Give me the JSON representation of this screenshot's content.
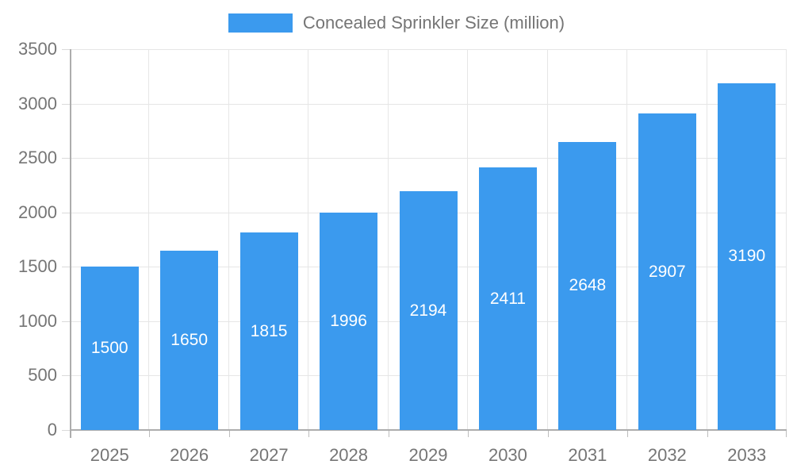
{
  "legend": {
    "label": "Concealed Sprinkler Size (million)"
  },
  "colors": {
    "bar": "#3B9AEE",
    "bar_label": "#FFFFFF",
    "grid_line": "#E6E6E6",
    "axis_line": "#ADADAD",
    "tick_mark": "#BDBDBD",
    "tick_stub": "#DADADA",
    "axis_label_text": "#757575",
    "legend_text": "#757575",
    "background": "#FFFFFF"
  },
  "chart_data": {
    "type": "bar",
    "categories": [
      "2025",
      "2026",
      "2027",
      "2028",
      "2029",
      "2030",
      "2031",
      "2032",
      "2033"
    ],
    "values": [
      1500,
      1650,
      1815,
      1996,
      2194,
      2411,
      2648,
      2907,
      3190
    ],
    "title": "Concealed Sprinkler Size (million)",
    "xlabel": "",
    "ylabel": "",
    "ylim": [
      0,
      3500
    ],
    "ytick_step": 500,
    "yticks": [
      0,
      500,
      1000,
      1500,
      2000,
      2500,
      3000,
      3500
    ],
    "grid": true,
    "legend_position": "top",
    "bar_label_position": "inside-center",
    "bar_color": "#3B9AEE"
  }
}
